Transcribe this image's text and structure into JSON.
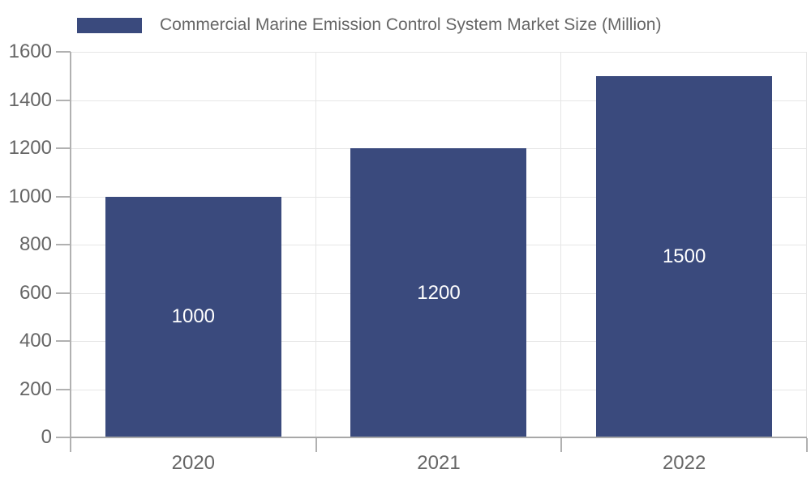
{
  "chart_data": {
    "type": "bar",
    "title": "Commercial Marine Emission Control System Market Size (Million)",
    "categories": [
      "2020",
      "2021",
      "2022"
    ],
    "series": [
      {
        "name": "Commercial Marine Emission Control System Market Size (Million)",
        "values": [
          1000,
          1200,
          1500
        ]
      }
    ],
    "data_labels": [
      "1000",
      "1200",
      "1500"
    ],
    "xlabel": "",
    "ylabel": "",
    "ylim": [
      0,
      1600
    ],
    "y_ticks": [
      0,
      200,
      400,
      600,
      800,
      1000,
      1200,
      1400,
      1600
    ],
    "grid": true,
    "legend_position": "top-left",
    "bar_width_fraction": 0.717,
    "colors": {
      "bar": "#3A4A7D",
      "data_label": "#FFFFFF",
      "grid": "#E6E6E6",
      "axis_line": "#A8A8A8",
      "tick": "#B1B1B1",
      "text": "#666666",
      "background": "#FFFFFF"
    }
  }
}
